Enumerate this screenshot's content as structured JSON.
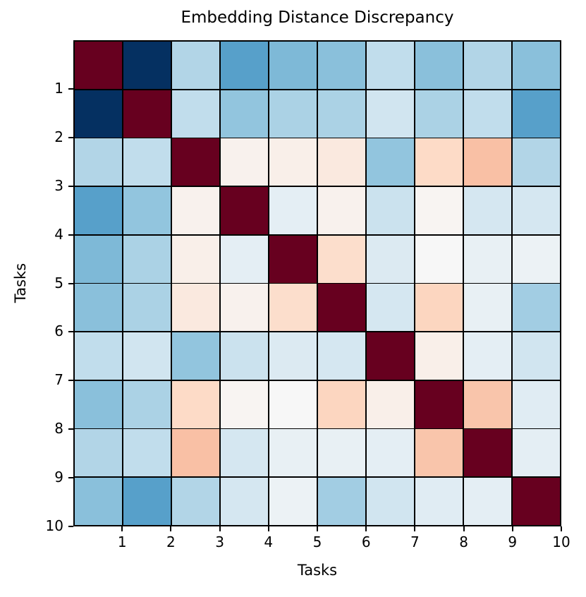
{
  "chart_data": {
    "type": "heatmap",
    "title": "Embedding Distance Discrepancy",
    "xlabel": "Tasks",
    "ylabel": "Tasks",
    "x_ticks": [
      "1",
      "2",
      "3",
      "4",
      "5",
      "6",
      "7",
      "8",
      "9",
      "10"
    ],
    "y_ticks": [
      "1",
      "2",
      "3",
      "4",
      "5",
      "6",
      "7",
      "8",
      "9",
      "10"
    ],
    "grid": true,
    "grid_color": "#000000",
    "colormap_name": "RdBu_r",
    "colormap_anchors": [
      "#053061",
      "#2166ac",
      "#4393c3",
      "#92c5de",
      "#d1e5f0",
      "#f7f7f7",
      "#fddbc7",
      "#f4a582",
      "#d6604d",
      "#b2182b",
      "#67001f"
    ],
    "vmin": -1,
    "vmax": 1,
    "values": [
      [
        1.0,
        -1.0,
        -0.3,
        -0.55,
        -0.45,
        -0.42,
        -0.25,
        -0.42,
        -0.3,
        -0.42
      ],
      [
        -1.0,
        1.0,
        -0.25,
        -0.4,
        -0.32,
        -0.32,
        -0.2,
        -0.32,
        -0.25,
        -0.55
      ],
      [
        -0.3,
        -0.25,
        1.0,
        0.04,
        0.06,
        0.1,
        -0.4,
        0.2,
        0.3,
        -0.3
      ],
      [
        -0.55,
        -0.4,
        0.04,
        1.0,
        -0.1,
        0.04,
        -0.22,
        0.02,
        -0.18,
        -0.18
      ],
      [
        -0.45,
        -0.32,
        0.06,
        -0.1,
        1.0,
        0.18,
        -0.14,
        0.0,
        -0.08,
        -0.06
      ],
      [
        -0.42,
        -0.32,
        0.1,
        0.04,
        0.18,
        1.0,
        -0.18,
        0.22,
        -0.08,
        -0.35
      ],
      [
        -0.25,
        -0.2,
        -0.4,
        -0.22,
        -0.14,
        -0.18,
        1.0,
        0.06,
        -0.1,
        -0.2
      ],
      [
        -0.42,
        -0.32,
        0.2,
        0.02,
        0.0,
        0.22,
        0.06,
        1.0,
        0.28,
        -0.12
      ],
      [
        -0.3,
        -0.25,
        0.3,
        -0.18,
        -0.08,
        -0.08,
        -0.1,
        0.28,
        1.0,
        -0.1
      ],
      [
        -0.42,
        -0.55,
        -0.3,
        -0.18,
        -0.06,
        -0.35,
        -0.2,
        -0.12,
        -0.1,
        1.0
      ]
    ]
  }
}
